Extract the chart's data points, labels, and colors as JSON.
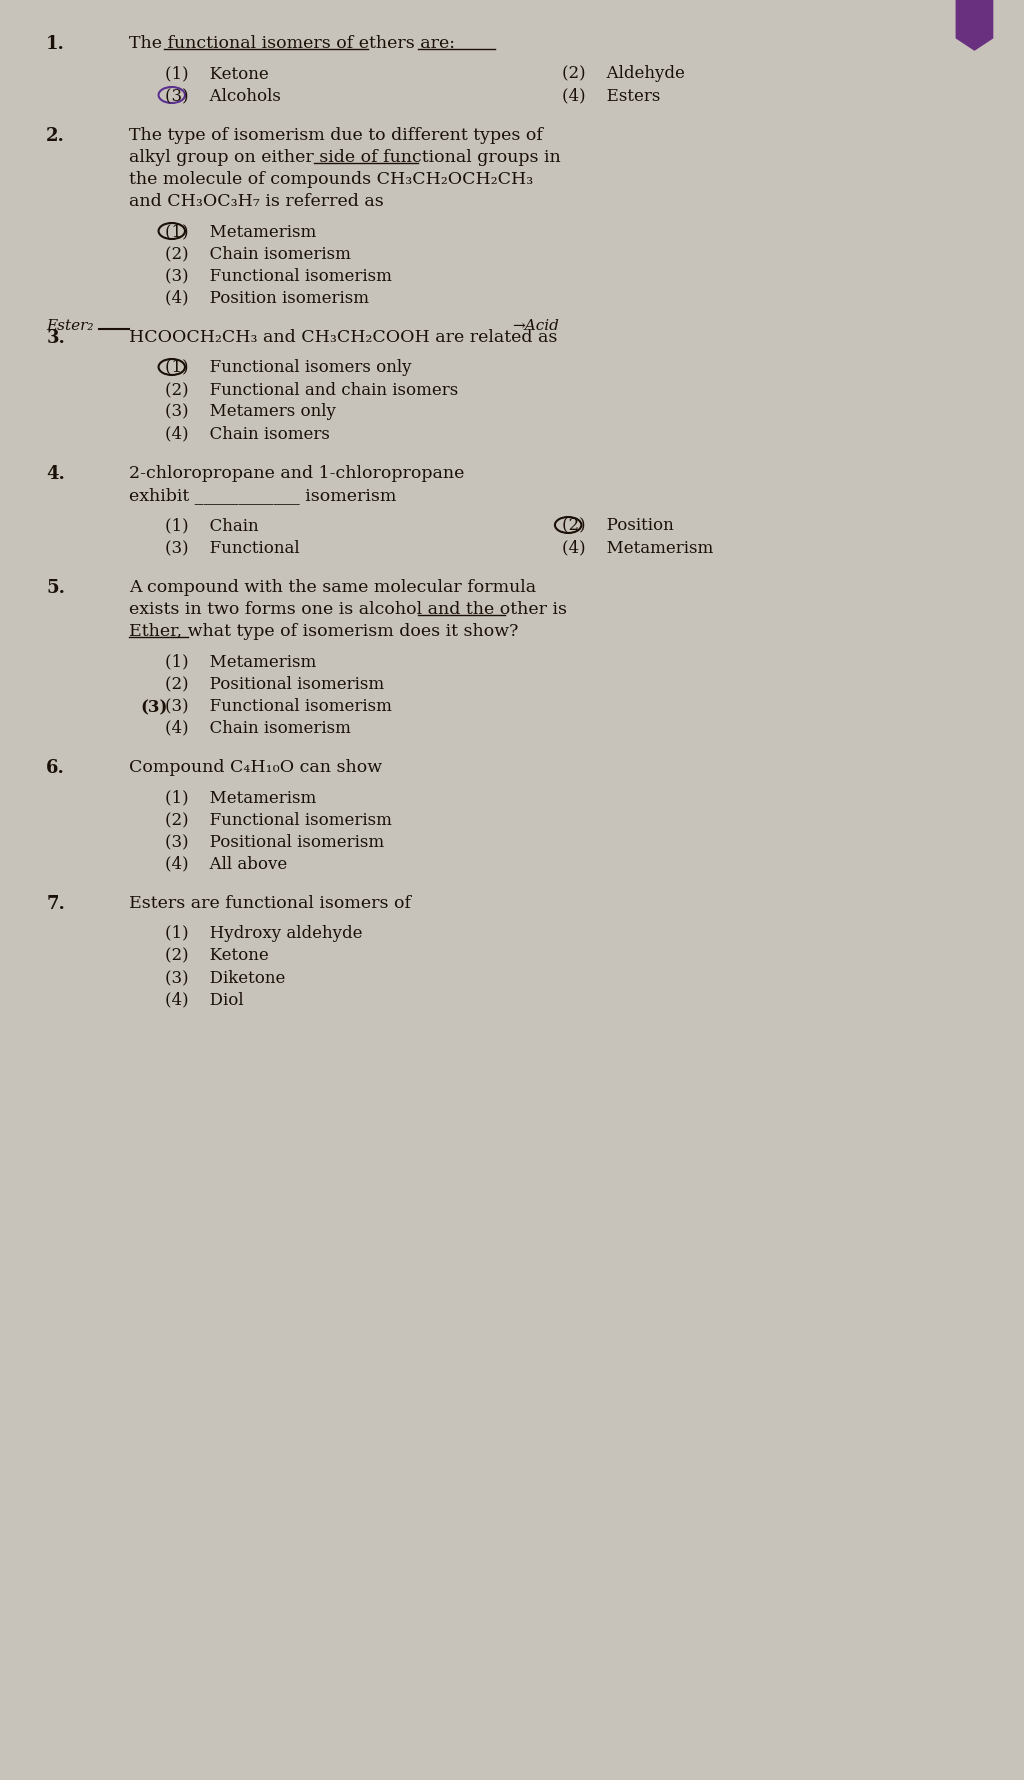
{
  "bg_color": "#c8c3ba",
  "text_color": "#1a1008",
  "page_color": "#ccc8bf",
  "figsize": [
    10.24,
    17.8
  ],
  "dpi": 100,
  "questions": [
    {
      "num": "1.",
      "qtext_lines": [
        "The functional isomers of ethers are:"
      ],
      "two_col": true,
      "opts": [
        [
          "(1)    Ketone",
          "(2)    Aldehyde"
        ],
        [
          "(3)    Alcohols",
          "(4)    Esters"
        ]
      ]
    },
    {
      "num": "2.",
      "qtext_lines": [
        "The type of isomerism due to different types of",
        "alkyl group on either side of functional groups in",
        "the molecule of compounds CH₃CH₂OCH₂CH₃",
        "and CH₃OC₃H₇ is referred as"
      ],
      "two_col": false,
      "opts": [
        [
          "(1)    Metamerism"
        ],
        [
          "(2)    Chain isomerism"
        ],
        [
          "(3)    Functional isomerism"
        ],
        [
          "(4)    Position isomerism"
        ]
      ]
    },
    {
      "num": "3.",
      "qtext_lines": [
        "HCOOCH₂CH₃ and CH₃CH₂COOH are related as"
      ],
      "two_col": false,
      "opts": [
        [
          "(1)    Functional isomers only"
        ],
        [
          "(2)    Functional and chain isomers"
        ],
        [
          "(3)    Metamers only"
        ],
        [
          "(4)    Chain isomers"
        ]
      ]
    },
    {
      "num": "4.",
      "qtext_lines": [
        "2-chloropropane and 1-chloropropane",
        "exhibit ____________ isomerism"
      ],
      "two_col": true,
      "opts": [
        [
          "(1)    Chain",
          "(2)    Position"
        ],
        [
          "(3)    Functional",
          "(4)    Metamerism"
        ]
      ]
    },
    {
      "num": "5.",
      "qtext_lines": [
        "A compound with the same molecular formula",
        "exists in two forms one is alcohol and the other is",
        "Ether, what type of isomerism does it show?"
      ],
      "two_col": false,
      "opts": [
        [
          "(1)    Metamerism"
        ],
        [
          "(2)    Positional isomerism"
        ],
        [
          "(3)    Functional isomerism"
        ],
        [
          "(4)    Chain isomerism"
        ]
      ]
    },
    {
      "num": "6.",
      "qtext_lines": [
        "Compound C₄H₁₀O can show"
      ],
      "two_col": false,
      "opts": [
        [
          "(1)    Metamerism"
        ],
        [
          "(2)    Functional isomerism"
        ],
        [
          "(3)    Positional isomerism"
        ],
        [
          "(4)    All above"
        ]
      ]
    },
    {
      "num": "7.",
      "qtext_lines": [
        "Esters are functional isomers of"
      ],
      "two_col": false,
      "opts": [
        [
          "(1)    Hydroxy aldehyde"
        ],
        [
          "(2)    Ketone"
        ],
        [
          "(3)    Diketone"
        ],
        [
          "(4)    Diol"
        ]
      ]
    }
  ]
}
